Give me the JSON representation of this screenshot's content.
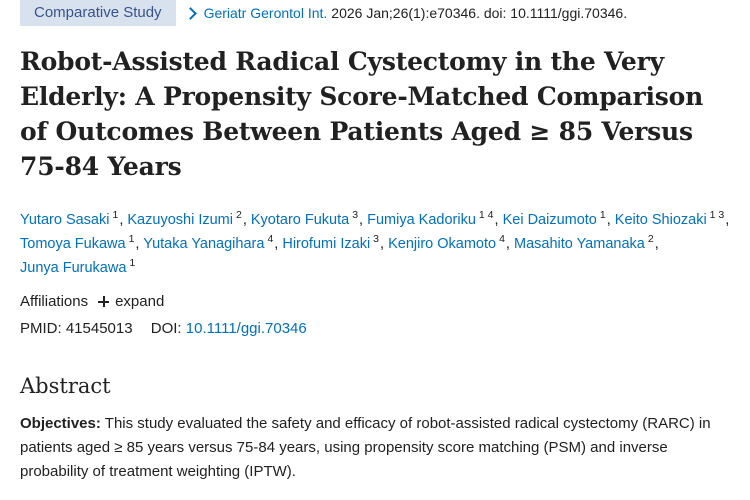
{
  "header": {
    "publication_type": "Comparative Study",
    "journal": "Geriatr Gerontol Int.",
    "citation_rest": "2026 Jan;26(1):e70346. doi: 10.1111/ggi.70346."
  },
  "article": {
    "title": "Robot-Assisted Radical Cystectomy in the Very Elderly: A Propensity Score-Matched Comparison of Outcomes Between Patients Aged ≥ 85 Versus 75-84 Years",
    "authors": [
      {
        "name": "Yutaro Sasaki",
        "affiliations": "1"
      },
      {
        "name": "Kazuyoshi Izumi",
        "affiliations": "2"
      },
      {
        "name": "Kyotaro Fukuta",
        "affiliations": "3"
      },
      {
        "name": "Fumiya Kadoriku",
        "affiliations": "1 4"
      },
      {
        "name": "Kei Daizumoto",
        "affiliations": "1"
      },
      {
        "name": "Keito Shiozaki",
        "affiliations": "1 3"
      },
      {
        "name": "Tomoya Fukawa",
        "affiliations": "1"
      },
      {
        "name": "Yutaka Yanagihara",
        "affiliations": "4"
      },
      {
        "name": "Hirofumi Izaki",
        "affiliations": "3"
      },
      {
        "name": "Kenjiro Okamoto",
        "affiliations": "4"
      },
      {
        "name": "Masahito Yamanaka",
        "affiliations": "2"
      },
      {
        "name": "Junya Furukawa",
        "affiliations": "1"
      }
    ],
    "affiliations_label": "Affiliations",
    "expand_label": "expand",
    "pmid_label": "PMID:",
    "pmid": "41545013",
    "doi_label": "DOI:",
    "doi": "10.1111/ggi.70346"
  },
  "abstract": {
    "heading": "Abstract",
    "objectives_label": "Objectives:",
    "objectives_text": "This study evaluated the safety and efficacy of robot-assisted radical cystectomy (RARC) in patients aged ≥ 85 years versus 75-84 years, using propensity score matching (PSM) and inverse probability of treatment weighting (IPTW)."
  },
  "colors": {
    "link": "#0071bc",
    "badge_background": "#d8e2ef",
    "badge_text": "#39528a",
    "text": "#212121"
  },
  "icons": {
    "citation_toggle": "chevron-right-icon",
    "expand": "plus-icon"
  }
}
